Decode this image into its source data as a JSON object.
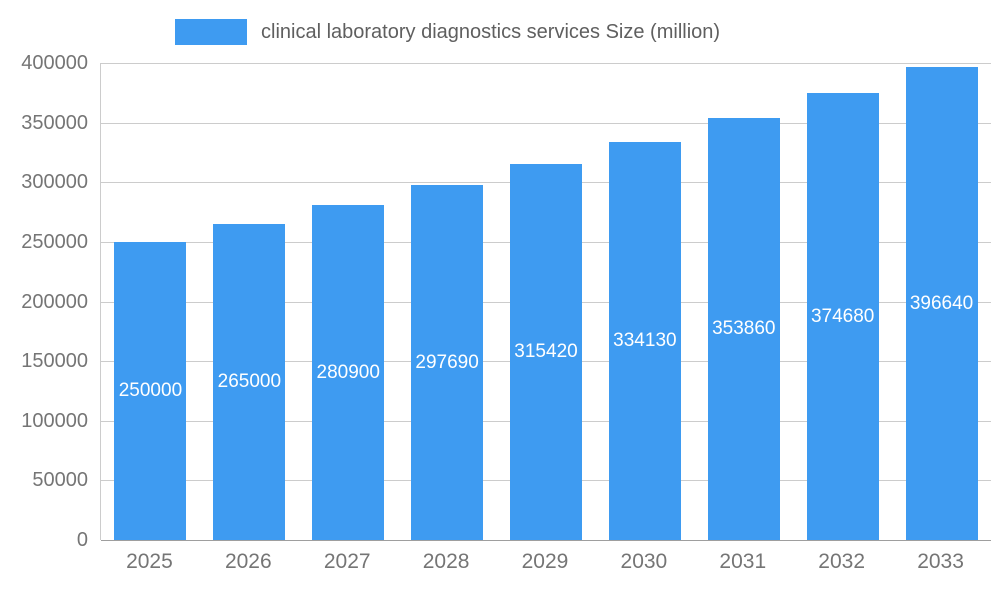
{
  "legend": {
    "label": "clinical laboratory diagnostics services Size (million)"
  },
  "chart_data": {
    "type": "bar",
    "title": "clinical laboratory diagnostics services Size (million)",
    "categories": [
      "2025",
      "2026",
      "2027",
      "2028",
      "2029",
      "2030",
      "2031",
      "2032",
      "2033"
    ],
    "values": [
      250000,
      265000,
      280900,
      297690,
      315420,
      334130,
      353860,
      374680,
      396640
    ],
    "xlabel": "",
    "ylabel": "",
    "ylim": [
      0,
      400000
    ],
    "yticks": [
      0,
      50000,
      100000,
      150000,
      200000,
      250000,
      300000,
      350000,
      400000
    ],
    "grid": true,
    "legend_position": "top",
    "bar_color": "#3e9bf1",
    "value_label_color": "#ffffff",
    "axis_label_color": "#757575",
    "gridline_color": "#cccccc"
  }
}
